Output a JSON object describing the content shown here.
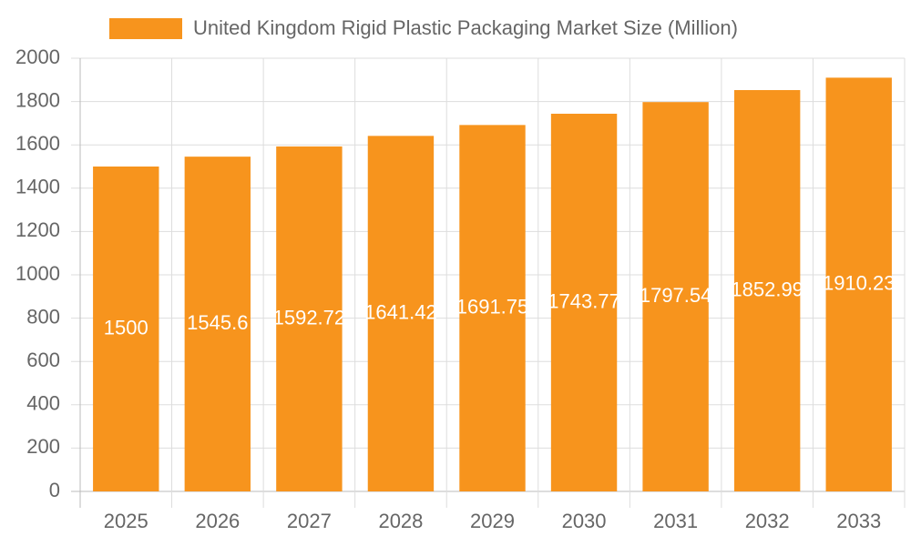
{
  "chart_data": {
    "type": "bar",
    "series": [
      {
        "name": "United Kingdom Rigid Plastic Packaging Market Size (Million)",
        "color": "#f7941d",
        "values": [
          1500,
          1545.6,
          1592.72,
          1641.42,
          1691.75,
          1743.77,
          1797.54,
          1852.99,
          1910.23
        ]
      }
    ],
    "categories": [
      "2025",
      "2026",
      "2027",
      "2028",
      "2029",
      "2030",
      "2031",
      "2032",
      "2033"
    ],
    "ylim": [
      0,
      2000
    ],
    "yticks": [
      0,
      200,
      400,
      600,
      800,
      1000,
      1200,
      1400,
      1600,
      1800,
      2000
    ],
    "grid": true,
    "legend": "top"
  }
}
